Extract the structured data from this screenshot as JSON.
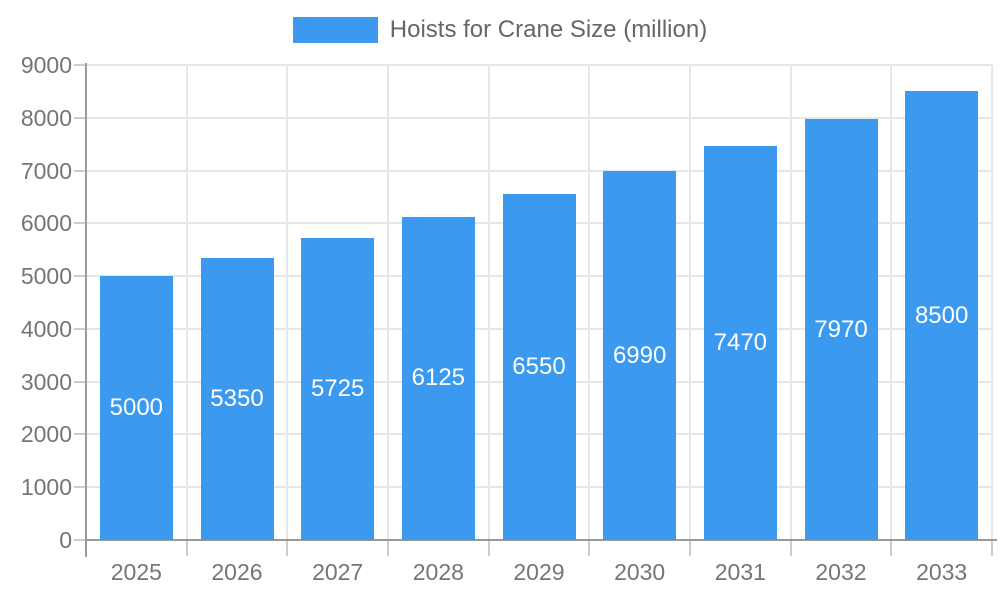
{
  "legend": {
    "label": "Hoists for Crane Size (million)"
  },
  "colors": {
    "bar": "#3b99f0",
    "bar_label": "#ffffff",
    "gridline": "#e6e6e6",
    "axis_line": "#999999",
    "tick": "#cccccc",
    "axis_text": "#757575",
    "legend_text": "#666666"
  },
  "chart_data": {
    "type": "bar",
    "title": "",
    "legend": "Hoists for Crane Size (million)",
    "legend_position": "top",
    "series_name": "Hoists for Crane Size (million)",
    "categories": [
      "2025",
      "2026",
      "2027",
      "2028",
      "2029",
      "2030",
      "2031",
      "2032",
      "2033"
    ],
    "values": [
      5000,
      5350,
      5725,
      6125,
      6550,
      6990,
      7470,
      7970,
      8500
    ],
    "bar_labels": [
      5000,
      5350,
      5725,
      6125,
      6550,
      6990,
      7470,
      7970,
      8500
    ],
    "xlabel": "",
    "ylabel": "",
    "ylim": [
      0,
      9000
    ],
    "yticks": [
      0,
      1000,
      2000,
      3000,
      4000,
      5000,
      6000,
      7000,
      8000,
      9000
    ],
    "grid": true
  }
}
